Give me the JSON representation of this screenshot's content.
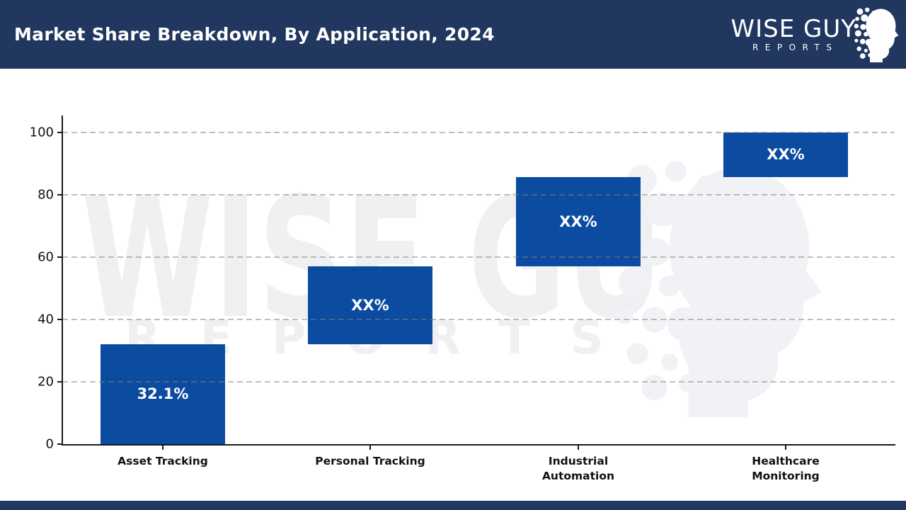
{
  "header": {
    "title": "Market Share Breakdown, By Application, 2024",
    "logo": {
      "line1": "WISE GUY",
      "line2": "REPORTS"
    }
  },
  "watermark": {
    "line1": "WISE GUY",
    "line2": "REPORTS"
  },
  "colors": {
    "header_bg": "#21375f",
    "bar": "#0b4ba0",
    "bar_label_text": "#ffffff",
    "axis": "#1a1a1a",
    "gridline": "#c8c8c8",
    "watermark": "#f0f0f3"
  },
  "chart_data": {
    "type": "bar",
    "variant": "stacked-waterfall",
    "title": "Market Share Breakdown, By Application, 2024",
    "xlabel": "",
    "ylabel": "",
    "categories": [
      "Asset Tracking",
      "Personal Tracking",
      "Industrial Automation",
      "Healthcare Monitoring"
    ],
    "category_lines": [
      [
        "Asset Tracking"
      ],
      [
        "Personal Tracking"
      ],
      [
        "Industrial",
        "Automation"
      ],
      [
        "Healthcare",
        "Monitoring"
      ]
    ],
    "segments": [
      {
        "category": "Asset Tracking",
        "start": 0,
        "end": 32.1,
        "label": "32.1%"
      },
      {
        "category": "Personal Tracking",
        "start": 32.1,
        "end": 57.0,
        "label": "XX%"
      },
      {
        "category": "Industrial Automation",
        "start": 57.0,
        "end": 85.7,
        "label": "XX%"
      },
      {
        "category": "Healthcare Monitoring",
        "start": 85.7,
        "end": 100,
        "label": "XX%"
      }
    ],
    "y_ticks": [
      0,
      20,
      40,
      60,
      80,
      100
    ],
    "ylim": [
      0,
      105
    ],
    "grid": "horizontal-dashed",
    "legend": "none"
  }
}
